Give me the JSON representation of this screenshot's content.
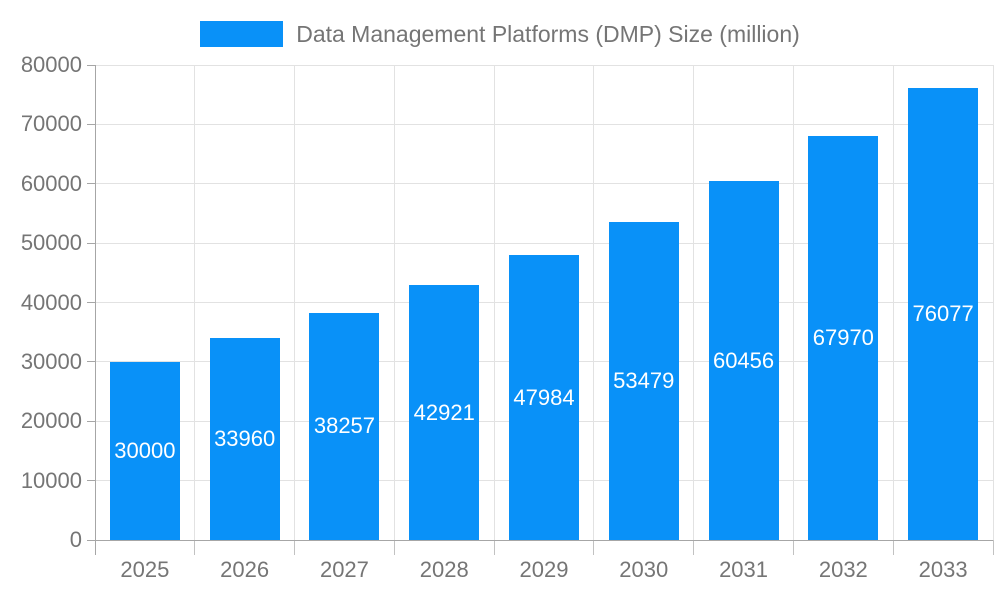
{
  "legend": {
    "label": "Data Management Platforms (DMP) Size (million)",
    "swatch": "legend-color-swatch"
  },
  "colors": {
    "bar": "#0991F8",
    "grid": "#E2E2E2",
    "axis": "#A6A6A6",
    "tick_mark": "#C2C2C2",
    "text": "#757575",
    "bar_label": "#FFFFFF",
    "background": "#FFFFFF"
  },
  "chart_data": {
    "type": "bar",
    "title": "Data Management Platforms (DMP) Size (million)",
    "categories": [
      "2025",
      "2026",
      "2027",
      "2028",
      "2029",
      "2030",
      "2031",
      "2032",
      "2033"
    ],
    "values": [
      30000,
      33960,
      38257,
      42921,
      47984,
      53479,
      60456,
      67970,
      76077
    ],
    "xlabel": "",
    "ylabel": "",
    "ylim": [
      0,
      80000
    ],
    "ytick_step": 10000,
    "ytick_labels": [
      "0",
      "10000",
      "20000",
      "30000",
      "40000",
      "50000",
      "60000",
      "70000",
      "80000"
    ],
    "grid": true,
    "legend_position": "top",
    "bar_label_position": "inside-center"
  }
}
